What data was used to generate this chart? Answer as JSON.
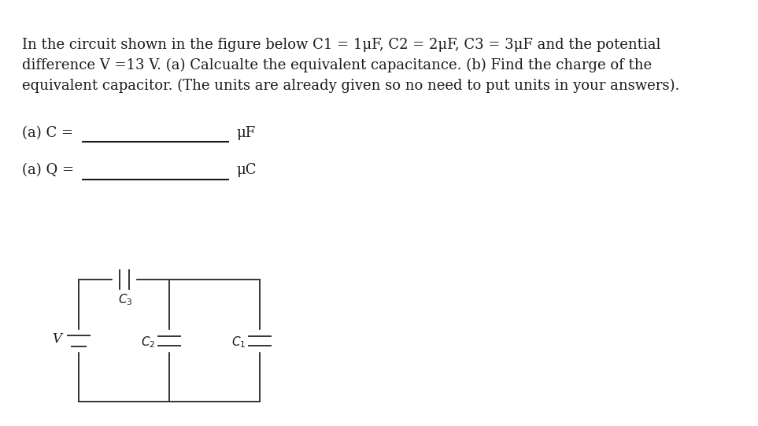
{
  "bg_color": "#ffffff",
  "text_color": "#1a1a1a",
  "line_color": "#333333",
  "paragraph_line1": "In the circuit shown in the figure below C1 = 1μF, C2 = 2μF, C3 = 3μF and the potential",
  "paragraph_line2": "difference V =13 V. (a) Calcualte the equivalent capacitance. (b) Find the charge of the",
  "paragraph_line3": "equivalent capacitor. (The units are already given so no need to put units in your answers).",
  "line1_label": "(a) C = ",
  "line1_unit": "μF",
  "line2_label": "(a) Q = ",
  "line2_unit": "μC",
  "font_size_text": 13.0,
  "font_size_labels": 13.0,
  "font_size_circuit": 11.0
}
